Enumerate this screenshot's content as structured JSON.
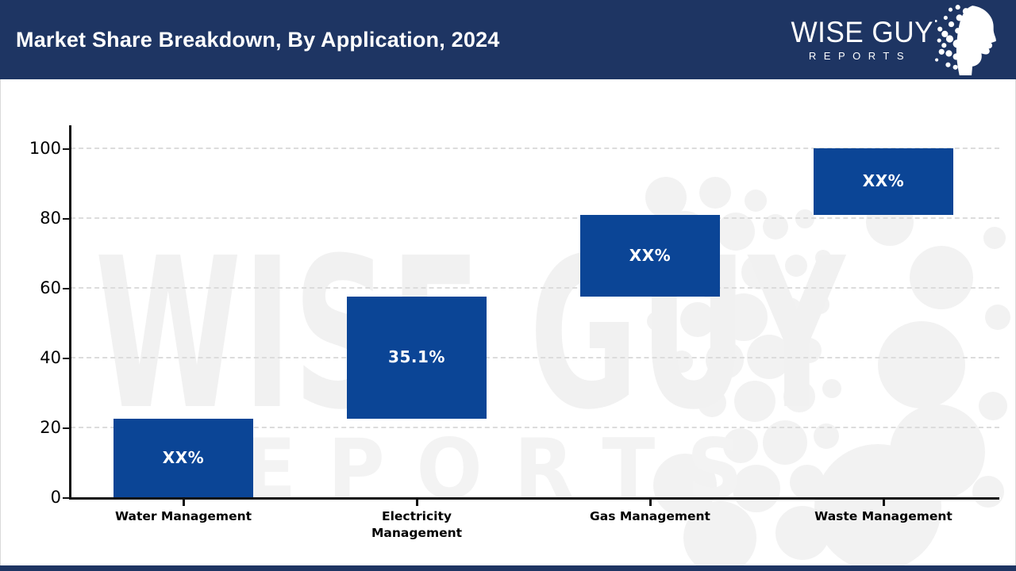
{
  "header": {
    "title": "Market Share Breakdown, By Application, 2024",
    "logo": {
      "name": "WISE GUY",
      "tagline": "REPORTS"
    }
  },
  "watermark": {
    "name": "WISE GUY",
    "tagline": "REPORTS"
  },
  "colors": {
    "header_bg": "#1e3563",
    "bar": "#0b4596",
    "bar_label": "#ffffff",
    "grid": "#dcdcdc",
    "axis": "#111111",
    "watermark": "#f2f2f2"
  },
  "chart_data": {
    "type": "bar",
    "subtype": "waterfall",
    "title": "Market Share Breakdown, By Application, 2024",
    "categories": [
      "Water Management",
      "Electricity\nManagement",
      "Gas Management",
      "Waste Management"
    ],
    "tick_labels": [
      "Water Management",
      "Electricity\nManagement",
      "Gas Management",
      "Waste Management"
    ],
    "segments": [
      {
        "category": "Water Management",
        "start": 0,
        "end": 22.4,
        "value_label": "XX%"
      },
      {
        "category": "Electricity Management",
        "start": 22.4,
        "end": 57.5,
        "value_label": "35.1%"
      },
      {
        "category": "Gas Management",
        "start": 57.5,
        "end": 80.9,
        "value_label": "XX%"
      },
      {
        "category": "Waste Management",
        "start": 80.9,
        "end": 100,
        "value_label": "XX%"
      }
    ],
    "xlabel": "",
    "ylabel": "",
    "ylim": [
      0,
      100
    ],
    "yticks": [
      0,
      20,
      40,
      60,
      80,
      100
    ],
    "grid": "horizontal-dashed",
    "legend": "none"
  }
}
